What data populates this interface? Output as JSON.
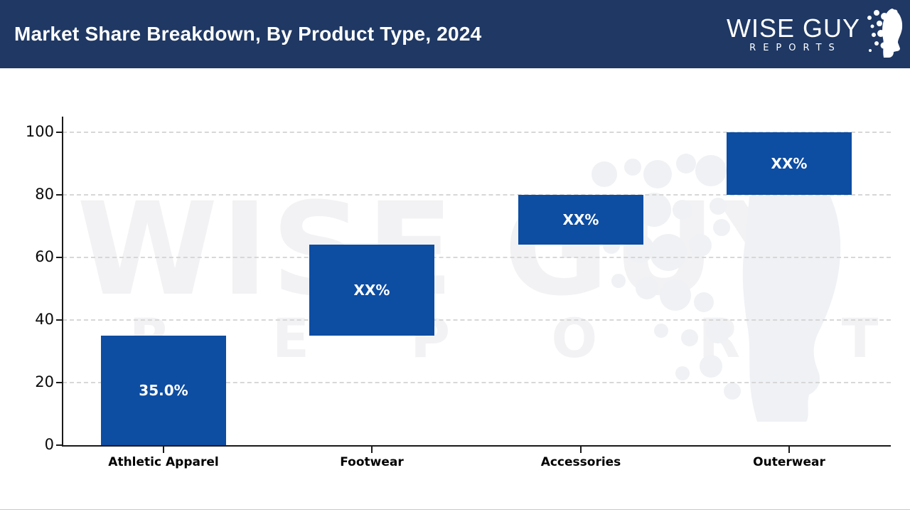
{
  "header": {
    "title": "Market Share Breakdown, By Product Type, 2024",
    "logo": {
      "line1": "WISE GUY",
      "line2": "REPORTS"
    }
  },
  "watermark": {
    "line1": "WISE GUY",
    "line2": "R E P O R T S"
  },
  "icons": {
    "logo_face": "dotted-head-profile-icon",
    "watermark_face": "dotted-head-profile-pattern"
  },
  "colors": {
    "header_background": "#1f3864",
    "bar_fill": "#0d4da2",
    "bar_label_text": "#ffffff",
    "gridline": "#d7d7d7",
    "axis": "#1a1a1a",
    "watermark": "#f2f2f4",
    "footer_hairline": "#c9c9c9"
  },
  "chart_data": {
    "type": "bar",
    "subtype": "waterfall",
    "title": "Market Share Breakdown, By Product Type, 2024",
    "categories": [
      "Athletic Apparel",
      "Footwear",
      "Accessories",
      "Outerwear"
    ],
    "segments": [
      {
        "category": "Athletic Apparel",
        "start": 0,
        "end": 35,
        "size": 35,
        "label": "35.0%"
      },
      {
        "category": "Footwear",
        "start": 35,
        "end": 64,
        "size": 29,
        "label": "XX%"
      },
      {
        "category": "Accessories",
        "start": 64,
        "end": 80,
        "size": 16,
        "label": "XX%"
      },
      {
        "category": "Outerwear",
        "start": 80,
        "end": 100,
        "size": 20,
        "label": "XX%"
      }
    ],
    "yticks": [
      0,
      20,
      40,
      60,
      80,
      100
    ],
    "ylim": [
      0,
      105
    ],
    "xlabel": "",
    "ylabel": "",
    "grid": "dashed horizontal",
    "legend": "none",
    "bar_color": "#0d4da2"
  }
}
